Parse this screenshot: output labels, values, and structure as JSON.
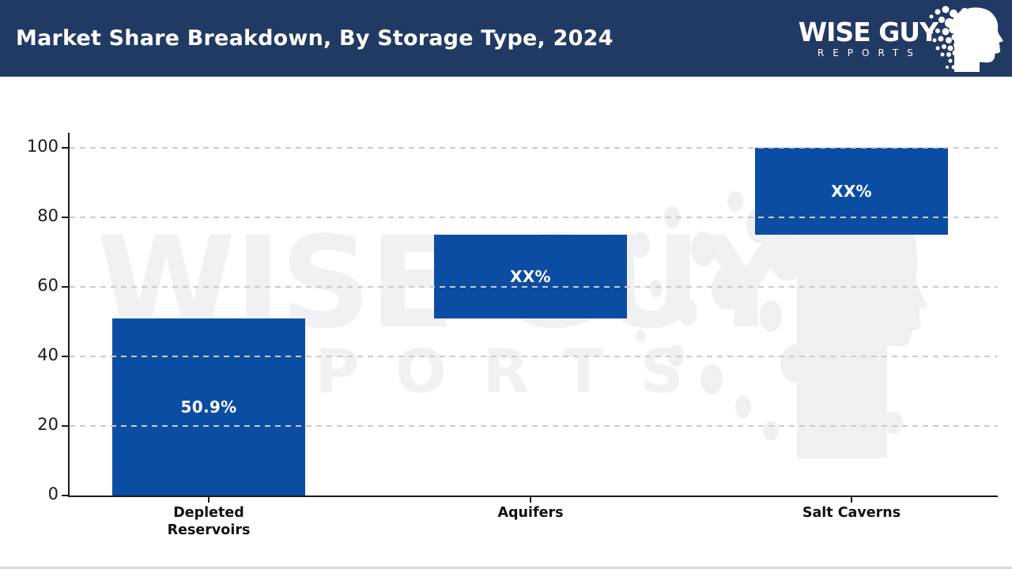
{
  "header": {
    "title": "Market Share Breakdown, By Storage Type, 2024",
    "logo": {
      "line1": "WISE GUY",
      "line2": "REPORTS"
    }
  },
  "watermark": {
    "line1": "WISE GUY",
    "line2": "REPORTS"
  },
  "chart_data": {
    "type": "bar",
    "subtype": "floating-waterfall",
    "title": "Market Share Breakdown, By Storage Type, 2024",
    "categories": [
      "Depleted Reservoirs",
      "Aquifers",
      "Salt Caverns"
    ],
    "segments": [
      {
        "category": "Depleted Reservoirs",
        "start": 0,
        "end": 50.9,
        "label": "50.9%"
      },
      {
        "category": "Aquifers",
        "start": 50.9,
        "end": 75,
        "label": "XX%"
      },
      {
        "category": "Salt Caverns",
        "start": 75,
        "end": 100,
        "label": "XX%"
      }
    ],
    "ylim": [
      0,
      100
    ],
    "yticks": [
      0,
      20,
      40,
      60,
      80,
      100
    ],
    "xlabel": "",
    "ylabel": "",
    "grid": "horizontal-dashed",
    "legend": "none",
    "bar_color": "#0b4da2",
    "bar_label_color": "#ffffff"
  },
  "colors": {
    "header_bg": "#213a64",
    "title_text": "#ffffff",
    "bar": "#0b4da2",
    "bar_label": "#ffffff",
    "axis": "#1a1a1a",
    "grid": "#cbcbcb",
    "tick_label": "#1a1a1a",
    "category_label": "#111111",
    "watermark": "#f1f1f3",
    "bottom_rule": "#d9d9d9"
  }
}
